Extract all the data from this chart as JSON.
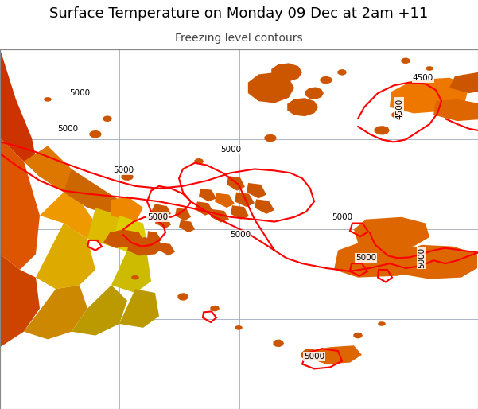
{
  "title": "Surface Temperature on Monday 09 Dec at 2am +11",
  "subtitle": "Freezing level contours",
  "title_fontsize": 13,
  "subtitle_fontsize": 10,
  "bg_color": "#ffffff",
  "map_bg_color": "#c8d0e8",
  "grid_color": "#a0a8c0",
  "contour_color": "#ff0000",
  "figsize": [
    6.01,
    5.14
  ],
  "dpi": 100,
  "border_color": "#888888"
}
